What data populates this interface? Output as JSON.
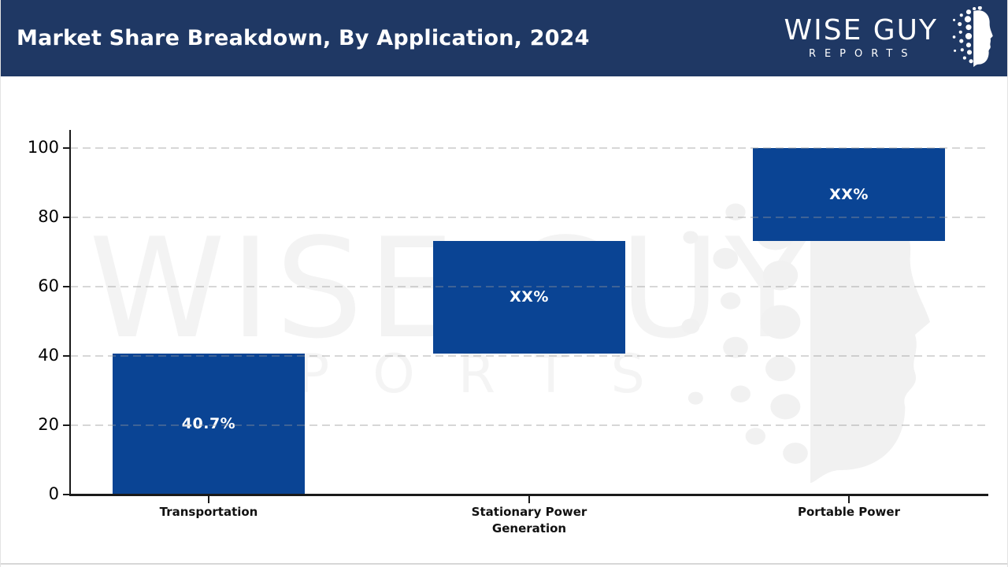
{
  "header": {
    "title": "Market Share Breakdown, By Application, 2024",
    "bg_color": "#1f3864",
    "logo": {
      "name": "WISE GUY",
      "subtitle": "REPORTS"
    }
  },
  "watermark": {
    "line1": "WISE GUY",
    "line2": "REPORTS"
  },
  "chart_data": {
    "type": "bar",
    "variant": "waterfall-stacked-breakdown",
    "title": "Market Share Breakdown, By Application, 2024",
    "categories": [
      "Transportation",
      "Stationary Power Generation",
      "Portable Power"
    ],
    "segments": [
      {
        "category": "Transportation",
        "start": 0,
        "end": 40.7,
        "value": 40.7,
        "label": "40.7%"
      },
      {
        "category": "Stationary Power Generation",
        "start": 40.7,
        "end": 73.2,
        "value": 32.5,
        "label": "XX%"
      },
      {
        "category": "Portable Power",
        "start": 73.2,
        "end": 100,
        "value": 26.8,
        "label": "XX%"
      }
    ],
    "xlabel": "",
    "ylabel": "",
    "ylim": [
      0,
      100
    ],
    "yticks": [
      0,
      20,
      40,
      60,
      80,
      100
    ],
    "grid": "horizontal-dashed",
    "legend": "none",
    "bar_color": "#0a4494",
    "bar_label_color": "#ffffff"
  }
}
